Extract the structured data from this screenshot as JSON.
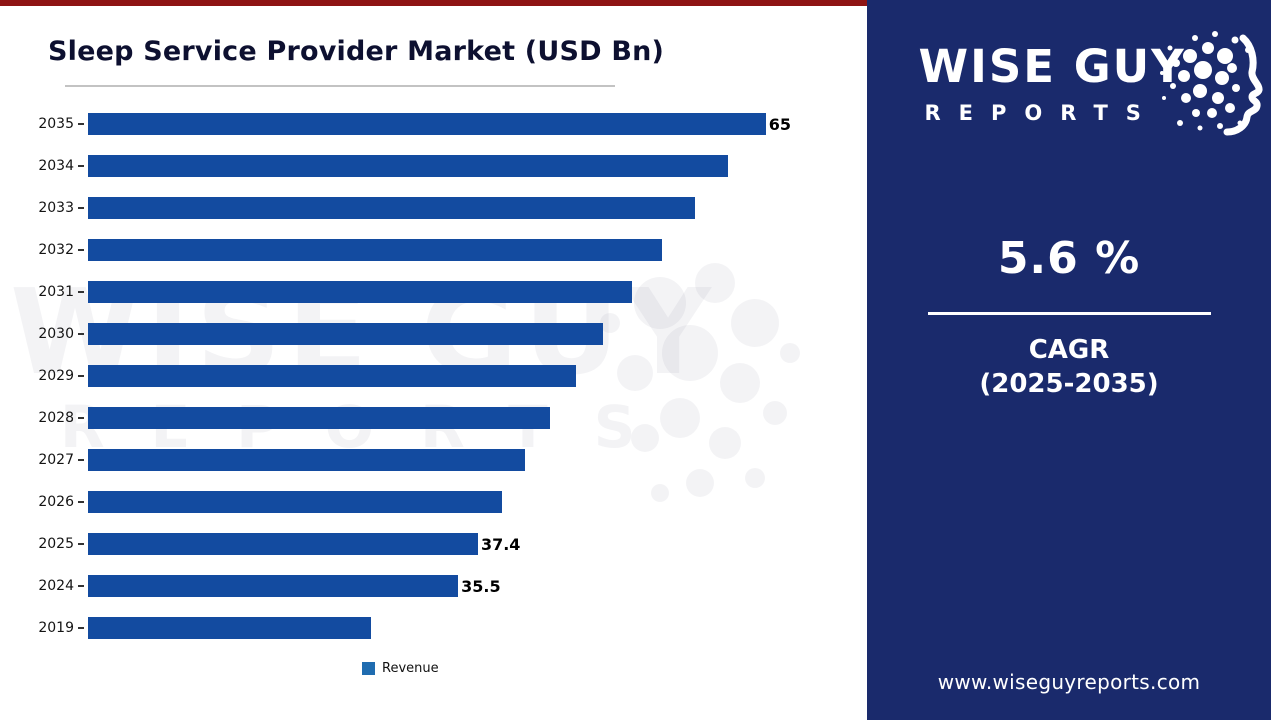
{
  "colors": {
    "top_strip": "#8e1414",
    "bar": "#134ba0",
    "legend": "#1f6cb0",
    "panel_bg": "#1a2a6c",
    "title_text": "#0d1030"
  },
  "header": {
    "title": "Sleep Service Provider Market (USD Bn)"
  },
  "chart_data": {
    "type": "bar",
    "orientation": "horizontal",
    "title": "Sleep Service Provider Market (USD Bn)",
    "ylabel": "",
    "xlabel": "",
    "categories": [
      "2035",
      "2034",
      "2033",
      "2032",
      "2031",
      "2030",
      "2029",
      "2028",
      "2027",
      "2026",
      "2025",
      "2024",
      "2019"
    ],
    "values": [
      65,
      61.4,
      58.2,
      55.1,
      52.2,
      49.4,
      46.8,
      44.3,
      41.9,
      39.7,
      37.4,
      35.5,
      27.1
    ],
    "xmax": 68,
    "bar_labels": {
      "2035": "65",
      "2025": "37.4",
      "2024": "35.5"
    },
    "legend_label": "Revenue",
    "legend_position": "bottom",
    "grid": false
  },
  "sidebar": {
    "logo_line1": "WISE GUY",
    "logo_line2": "REPORTS",
    "cagr_value": "5.6 %",
    "cagr_label": "CAGR",
    "cagr_period": "(2025-2035)",
    "website": "www.wiseguyreports.com"
  },
  "watermark": {
    "line1": "WISE GUY",
    "line2": "REPORTS"
  }
}
